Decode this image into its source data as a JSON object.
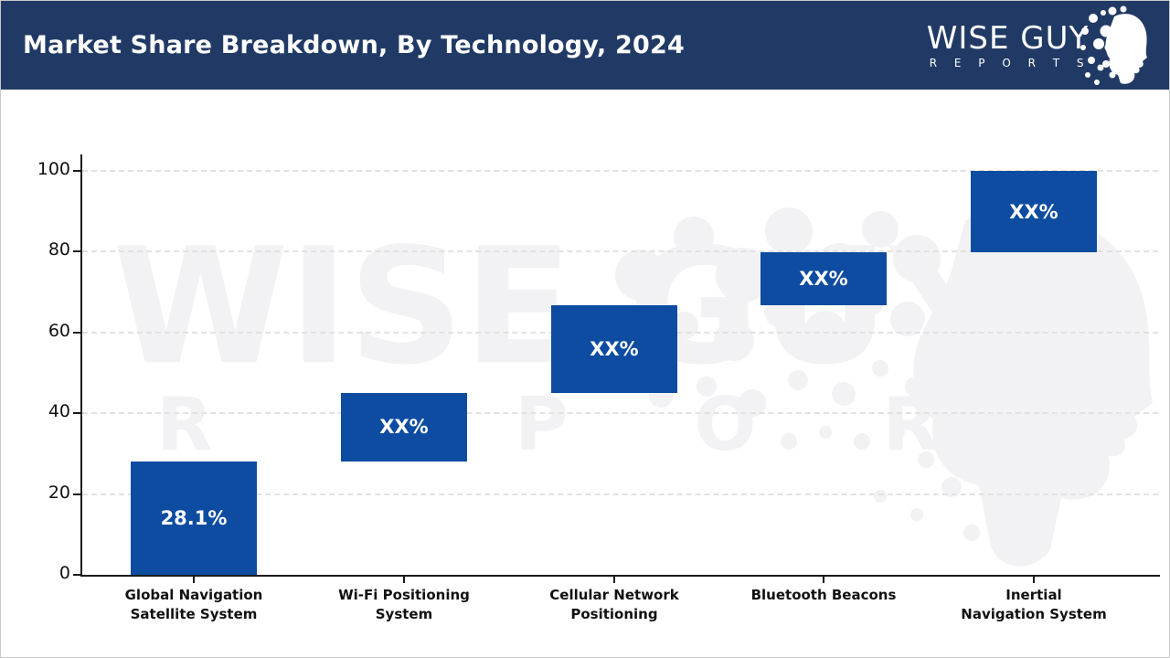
{
  "header": {
    "title": "Market Share Breakdown, By Technology, 2024",
    "logo": {
      "name": "WISE GUY",
      "sub": "R E P O R T S",
      "face_icon": "face-profile-dots"
    }
  },
  "watermark": {
    "line1": "WISE GUY",
    "line2": "R E P O R T S"
  },
  "colors": {
    "header_bg": "#213a65",
    "bar": "#0d4ca0",
    "grid": "#e2e2e2",
    "axis": "#1a1a1a",
    "watermark": "#f2f2f4",
    "panel_border": "#c9c9c9",
    "title_text": "#ffffff",
    "bar_label_text": "#ffffff"
  },
  "chart_data": {
    "type": "bar",
    "subtype": "waterfall",
    "title": "Market Share Breakdown, By Technology, 2024",
    "xlabel": "",
    "ylabel": "",
    "categories": [
      "Global Navigation Satellite System",
      "Wi-Fi Positioning System",
      "Cellular Network Positioning",
      "Bluetooth Beacons",
      "Inertial Navigation System"
    ],
    "category_label_lines": [
      [
        "Global Navigation",
        "Satellite System"
      ],
      [
        "Wi-Fi Positioning",
        "System"
      ],
      [
        "Cellular Network",
        "Positioning"
      ],
      [
        "Bluetooth Beacons"
      ],
      [
        "Inertial",
        "Navigation System"
      ]
    ],
    "segments": [
      {
        "category": "Global Navigation Satellite System",
        "start": 0,
        "end": 28.1,
        "value_label": "28.1%"
      },
      {
        "category": "Wi-Fi Positioning System",
        "start": 28.1,
        "end": 45.0,
        "value_label": "XX%"
      },
      {
        "category": "Cellular Network Positioning",
        "start": 45.0,
        "end": 66.7,
        "value_label": "XX%"
      },
      {
        "category": "Bluetooth Beacons",
        "start": 66.7,
        "end": 79.8,
        "value_label": "XX%"
      },
      {
        "category": "Inertial Navigation System",
        "start": 79.8,
        "end": 100,
        "value_label": "XX%"
      }
    ],
    "yticks": [
      0,
      20,
      40,
      60,
      80,
      100
    ],
    "ylim": [
      0,
      105
    ],
    "grid": "horizontal dashed",
    "legend": "none",
    "bar_color": "#0d4ca0",
    "value_label_color": "#ffffff"
  }
}
